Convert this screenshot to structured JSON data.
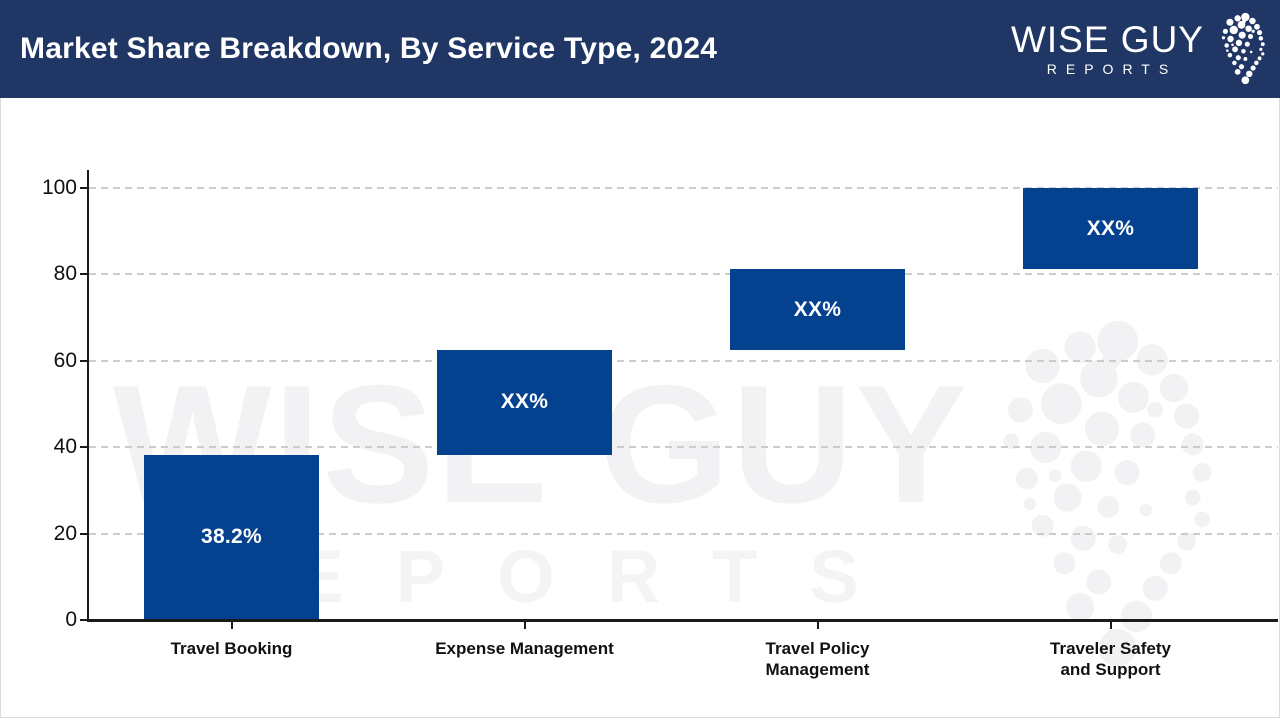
{
  "header": {
    "title": "Market Share Breakdown, By Service Type, 2024",
    "logo": {
      "line1": "WISE GUY",
      "line2": "REPORTS"
    }
  },
  "watermark": {
    "line1": "WISE GUY",
    "line2": "REPORTS"
  },
  "icons": {
    "logo_head": "dotted-head-profile",
    "watermark_head": "dotted-head-profile"
  },
  "colors": {
    "header_bg": "#203665",
    "bar": "#04418f",
    "bar_label": "#ffffff",
    "axis": "#1a1a1a",
    "gridline": "#cccccc",
    "watermark": "#f2f2f4"
  },
  "chart_data": {
    "type": "bar",
    "subtype": "waterfall",
    "title": "Market Share Breakdown, By Service Type, 2024",
    "categories": [
      [
        "Travel Booking"
      ],
      [
        "Expense Management"
      ],
      [
        "Travel Policy",
        "Management"
      ],
      [
        "Traveler Safety",
        "and Support"
      ]
    ],
    "bars": [
      {
        "category": "Travel Booking",
        "start": 0,
        "end": 38.2,
        "label": "38.2%"
      },
      {
        "category": "Expense Management",
        "start": 38.2,
        "end": 62.5,
        "label": "XX%"
      },
      {
        "category": "Travel Policy Management",
        "start": 62.5,
        "end": 81.2,
        "label": "XX%"
      },
      {
        "category": "Traveler Safety and Support",
        "start": 81.2,
        "end": 100,
        "label": "XX%"
      }
    ],
    "ylim": [
      0,
      100
    ],
    "yticks": [
      0,
      20,
      40,
      60,
      80,
      100
    ],
    "xlabel": "",
    "ylabel": "",
    "grid": "horizontal-dashed",
    "legend": false
  }
}
